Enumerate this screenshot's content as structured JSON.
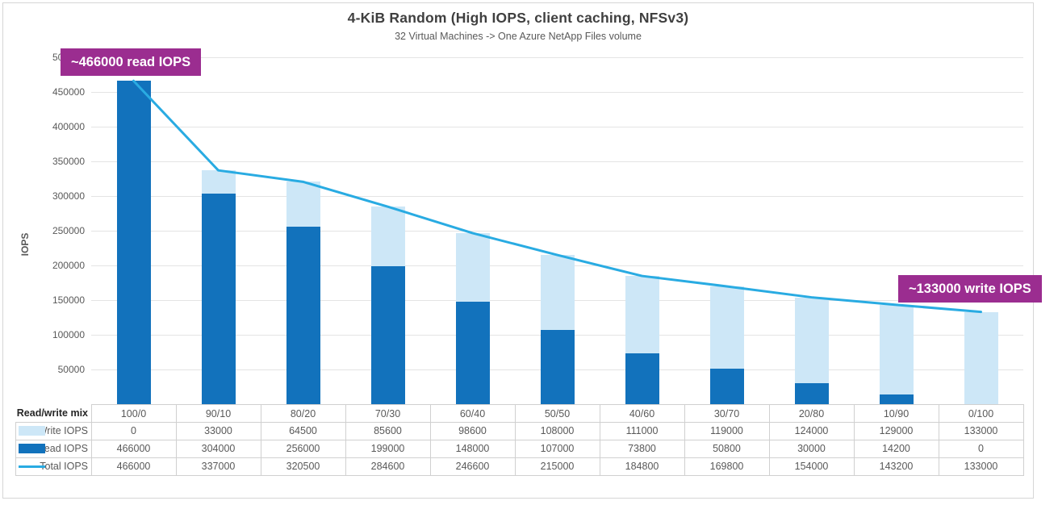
{
  "chart_data": {
    "type": "bar",
    "subtype": "stacked-bars-with-total-line",
    "title": "4-KiB Random (High IOPS, client caching, NFSv3)",
    "subtitle": "32 Virtual Machines -> One Azure NetApp Files volume",
    "xlabel": "",
    "ylabel": "IOPS",
    "ylim": [
      0,
      500000
    ],
    "ytick_step": 50000,
    "yticks": [
      500000,
      450000,
      400000,
      350000,
      300000,
      250000,
      200000,
      150000,
      100000,
      50000
    ],
    "grid": "horizontal",
    "legend_position": "data-table-left",
    "row_header": "Read/write mix",
    "categories": [
      "100/0",
      "90/10",
      "80/20",
      "70/30",
      "60/40",
      "50/50",
      "40/60",
      "30/70",
      "20/80",
      "10/90",
      "0/100"
    ],
    "series": [
      {
        "name": "Write IOPS",
        "type": "bar",
        "stack": "top",
        "color": "#cde7f7",
        "values": [
          0,
          33000,
          64500,
          85600,
          98600,
          108000,
          111000,
          119000,
          124000,
          129000,
          133000
        ]
      },
      {
        "name": "Read IOPS",
        "type": "bar",
        "stack": "bottom",
        "color": "#1272bc",
        "values": [
          466000,
          304000,
          256000,
          199000,
          148000,
          107000,
          73800,
          50800,
          30000,
          14200,
          0
        ]
      },
      {
        "name": "Total IOPS",
        "type": "line",
        "color": "#29abe2",
        "values": [
          466000,
          337000,
          320500,
          284600,
          246600,
          215000,
          184800,
          169800,
          154000,
          143200,
          133000
        ]
      }
    ],
    "annotations": [
      {
        "text": "~466000 read IOPS",
        "anchor": "first-bar-top"
      },
      {
        "text": "~133000 write IOPS",
        "anchor": "last-bar-top"
      }
    ],
    "colors": {
      "read_bar": "#1272bc",
      "write_bar": "#cde7f7",
      "total_line": "#29abe2",
      "annotation_bg": "#9b2d90",
      "annotation_text": "#ffffff",
      "gridline": "#e4e4e4",
      "table_border": "#d0d0d0",
      "text": "#595959"
    }
  }
}
